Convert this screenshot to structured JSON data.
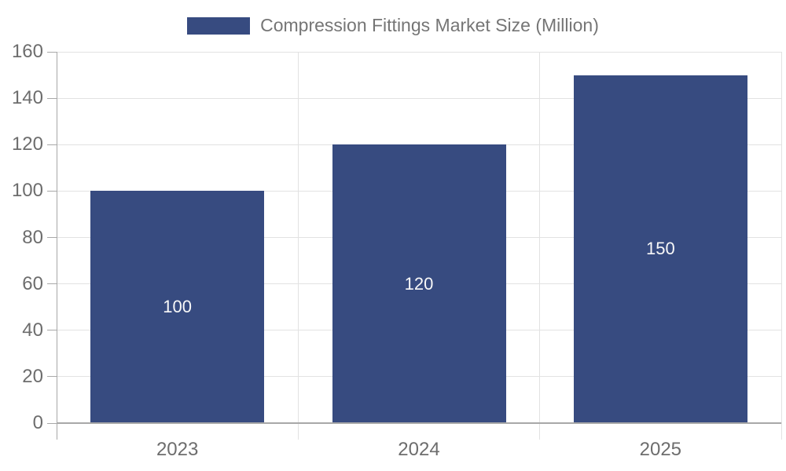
{
  "legend": {
    "label": "Compression Fittings Market Size (Million)"
  },
  "chart_data": {
    "type": "bar",
    "title": "Compression Fittings Market Size (Million)",
    "categories": [
      "2023",
      "2024",
      "2025"
    ],
    "values": [
      100,
      120,
      150
    ],
    "value_labels": [
      "100",
      "120",
      "150"
    ],
    "xlabel": "",
    "ylabel": "",
    "ylim": [
      0,
      160
    ],
    "yticks": [
      0,
      20,
      40,
      60,
      80,
      100,
      120,
      140,
      160
    ],
    "grid": true,
    "legend_position": "top-center",
    "bar_width_fraction": 0.72
  },
  "colors": {
    "bar": "#374b80",
    "grid": "#e2e2e2",
    "axis": "#a8a8a8",
    "tick_text": "#6d6d6d",
    "legend_text": "#757575",
    "value_text": "#f8f8f8",
    "background": "#ffffff"
  }
}
